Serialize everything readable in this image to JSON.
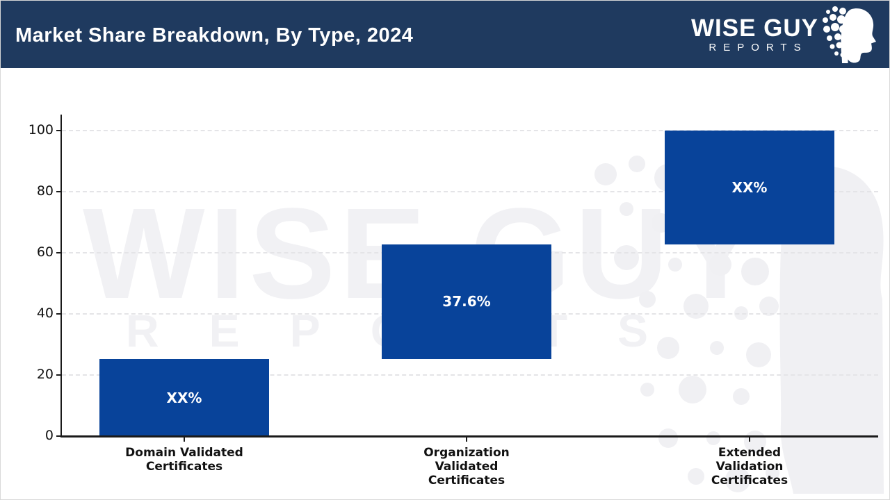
{
  "header": {
    "title": "Market Share Breakdown, By Type, 2024",
    "logo_line1": "WISE GUY",
    "logo_line2": "REPORTS"
  },
  "watermark": {
    "line1": "WISE GUY",
    "line2": "REPORTS"
  },
  "chart_data": {
    "type": "bar",
    "subtype": "floating-waterfall",
    "title": "Market Share Breakdown, By Type, 2024",
    "categories": [
      "Domain Validated\nCertificates",
      "Organization\nValidated\nCertificates",
      "Extended\nValidation\nCertificates"
    ],
    "bars": [
      {
        "category": "Domain Validated Certificates",
        "start": 0,
        "end": 25.2,
        "label": "XX%"
      },
      {
        "category": "Organization Validated Certificates",
        "start": 25.2,
        "end": 62.8,
        "label": "37.6%"
      },
      {
        "category": "Extended Validation Certificates",
        "start": 62.8,
        "end": 100,
        "label": "XX%"
      }
    ],
    "xlabel": "",
    "ylabel": "",
    "ylim": [
      0,
      100
    ],
    "yticks": [
      0,
      20,
      40,
      60,
      80,
      100
    ],
    "grid": "horizontal-dashed",
    "legend": "none",
    "bar_color": "#08439a",
    "bar_label_color": "#ffffff"
  },
  "colors": {
    "header_bg": "#1f3a5f",
    "page_bg": "#ffffff",
    "watermark": "#f1f1f4",
    "axis": "#1a1a1a"
  }
}
